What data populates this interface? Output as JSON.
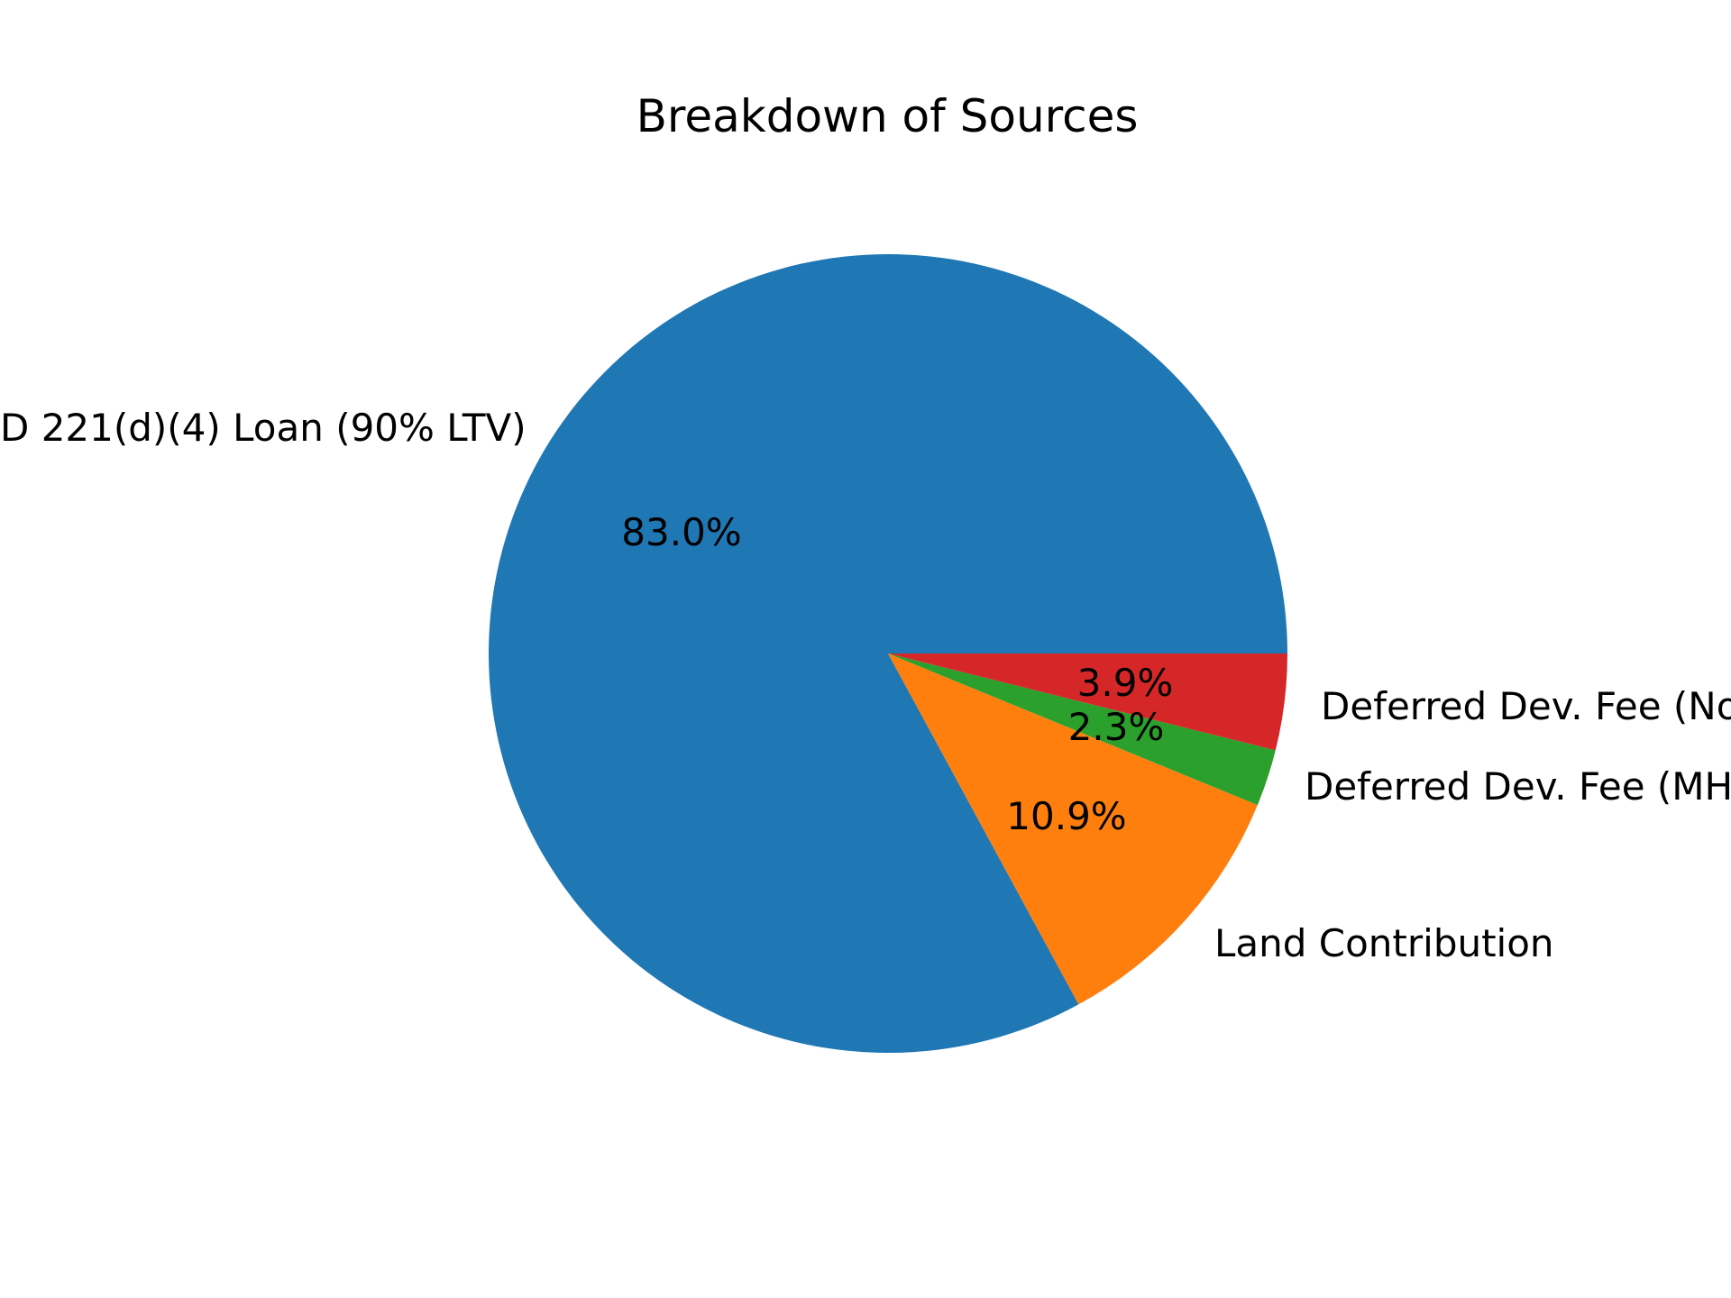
{
  "background": "#ffffff",
  "chart_data": {
    "type": "pie",
    "title": "Breakdown of Sources",
    "start_angle_deg": 0,
    "direction": "counterclockwise",
    "pct_distance": 0.6,
    "label_distance": 1.1,
    "legend": "none",
    "slices": [
      {
        "name": "pie-slice-loan",
        "label": "D 221(d)(4) Loan (90% LTV)",
        "value_pct": 83.0,
        "pct_label": "83.0%",
        "color": "#1f77b4"
      },
      {
        "name": "pie-slice-land-contribution",
        "label": "Land Contribution",
        "value_pct": 10.9,
        "pct_label": "10.9%",
        "color": "#ff7f0e"
      },
      {
        "name": "pie-slice-deferred-dev-fee-mh",
        "label": "Deferred Dev. Fee (MH",
        "value_pct": 2.3,
        "pct_label": "2.3%",
        "color": "#2ca02c"
      },
      {
        "name": "pie-slice-deferred-dev-fee-no",
        "label": "Deferred Dev. Fee (No",
        "value_pct": 3.9,
        "pct_label": "3.9%",
        "color": "#d62728"
      }
    ]
  }
}
